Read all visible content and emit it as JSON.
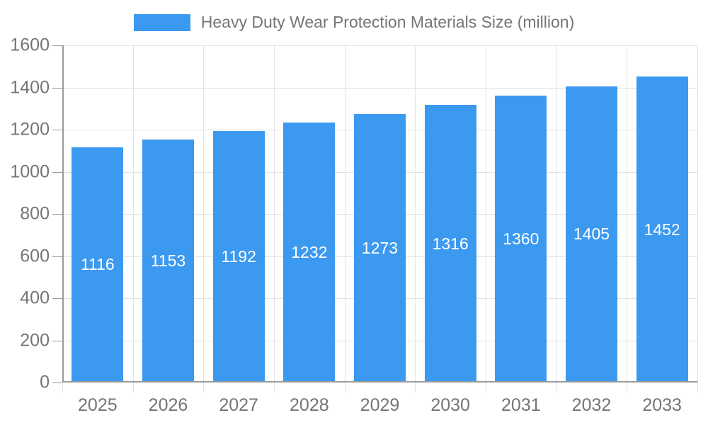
{
  "legend": {
    "label": "Heavy Duty Wear Protection Materials Size (million)"
  },
  "chart_data": {
    "type": "bar",
    "title": "Heavy Duty Wear Protection Materials Size (million)",
    "categories": [
      "2025",
      "2026",
      "2027",
      "2028",
      "2029",
      "2030",
      "2031",
      "2032",
      "2033"
    ],
    "values": [
      1116,
      1153,
      1192,
      1232,
      1273,
      1316,
      1360,
      1405,
      1452
    ],
    "xlabel": "",
    "ylabel": "",
    "ylim": [
      0,
      1600
    ],
    "yticks": [
      0,
      200,
      400,
      600,
      800,
      1000,
      1200,
      1400,
      1600
    ],
    "grid": true,
    "legend_position": "top-center",
    "bar_label_position": "inside-middle",
    "colors": {
      "bar": "#3b99f0",
      "bar_label": "#ffffff",
      "grid": "#e2e2e2",
      "axis": "#9a9a9a",
      "text": "#757575"
    }
  }
}
